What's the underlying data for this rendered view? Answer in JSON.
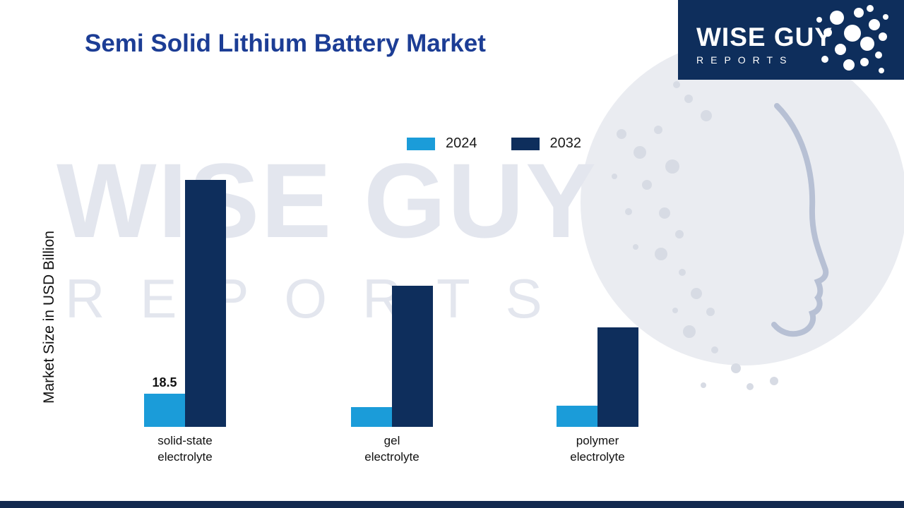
{
  "page": {
    "title": "Semi Solid Lithium Battery Market"
  },
  "brand": {
    "line1": "WISE GUY",
    "line2": "REPORTS",
    "bg_color": "#0e2e5c"
  },
  "watermark": {
    "line1": "WISE GUY",
    "line2": "REPORTS"
  },
  "chart_data": {
    "type": "bar",
    "title": "Semi Solid Lithium Battery Market",
    "xlabel": "",
    "ylabel": "Market Size in USD Billion",
    "categories": [
      "solid-state electrolyte",
      "gel electrolyte",
      "polymer electrolyte"
    ],
    "series": [
      {
        "name": "2024",
        "color": "#1b9cd9",
        "values": [
          18.5,
          11.0,
          11.8
        ]
      },
      {
        "name": "2032",
        "color": "#0e2e5c",
        "values": [
          138.0,
          79.0,
          55.5
        ]
      }
    ],
    "bar_labels": {
      "2024": [
        "18.5",
        "",
        ""
      ],
      "2032": [
        "",
        "",
        ""
      ]
    },
    "ylim": [
      0,
      150
    ],
    "grid": false,
    "legend_position": "top",
    "colors": {
      "title_blue": "#1c3d95",
      "series_2024": "#1b9cd9",
      "series_2032": "#0e2e5c",
      "footer": "#12294f",
      "watermark": "#e3e6ee"
    }
  }
}
